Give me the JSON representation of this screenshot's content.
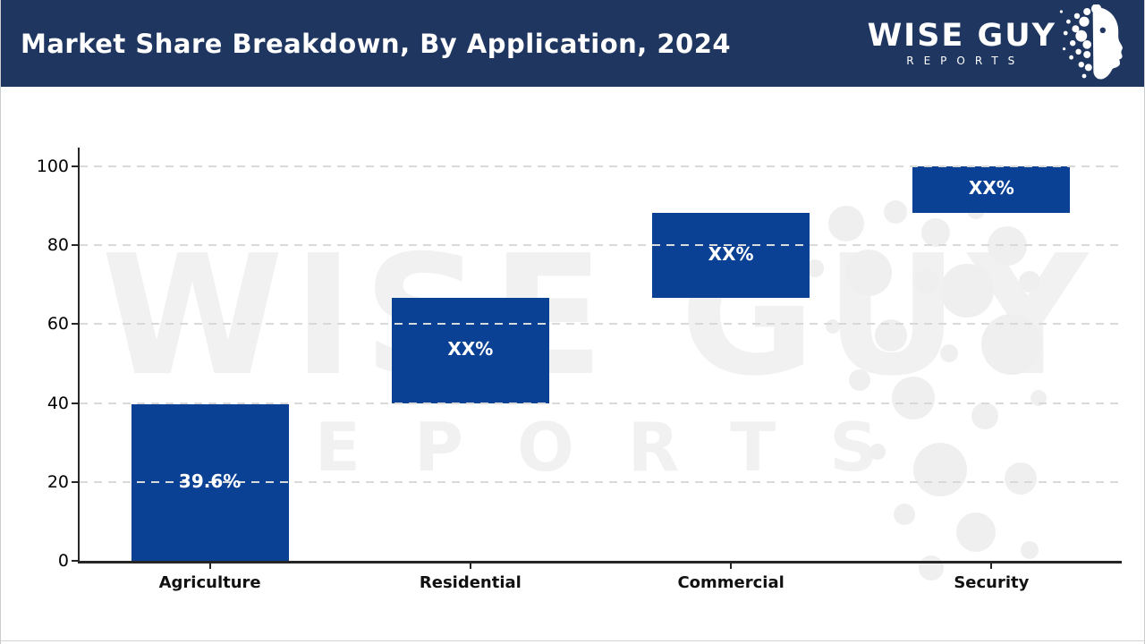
{
  "header": {
    "title": "Market Share Breakdown, By Application, 2024",
    "logo": {
      "line1": "WISE GUY",
      "line2": "REPORTS"
    }
  },
  "watermark": {
    "line1": "WISE GUY",
    "line2": "REPORTS"
  },
  "chart_data": {
    "type": "bar",
    "subtype": "waterfall",
    "title": "Market Share Breakdown, By Application, 2024",
    "categories": [
      "Agriculture",
      "Residential",
      "Commercial",
      "Security"
    ],
    "segments": [
      {
        "category": "Agriculture",
        "start": 0,
        "end": 39.6,
        "label": "39.6%"
      },
      {
        "category": "Residential",
        "start": 40,
        "end": 66.6,
        "label": "XX%"
      },
      {
        "category": "Commercial",
        "start": 66.6,
        "end": 88.2,
        "label": "XX%"
      },
      {
        "category": "Security",
        "start": 88.2,
        "end": 100,
        "label": "XX%"
      }
    ],
    "y_axis": {
      "min": 0,
      "max": 100,
      "ticks": [
        0,
        20,
        40,
        60,
        80,
        100
      ]
    },
    "xlabel": "",
    "ylabel": "",
    "legend": "none",
    "grid": "horizontal-dashed",
    "colors": {
      "bar": "#0b4194",
      "bar_label": "#ffffff",
      "grid": "#d9d9d9",
      "axis": "#262626",
      "tick_label": "#000000",
      "category_label": "#111111",
      "header_bg": "#1f3660",
      "header_text": "#ffffff",
      "watermark": "#f1f1f1"
    }
  }
}
